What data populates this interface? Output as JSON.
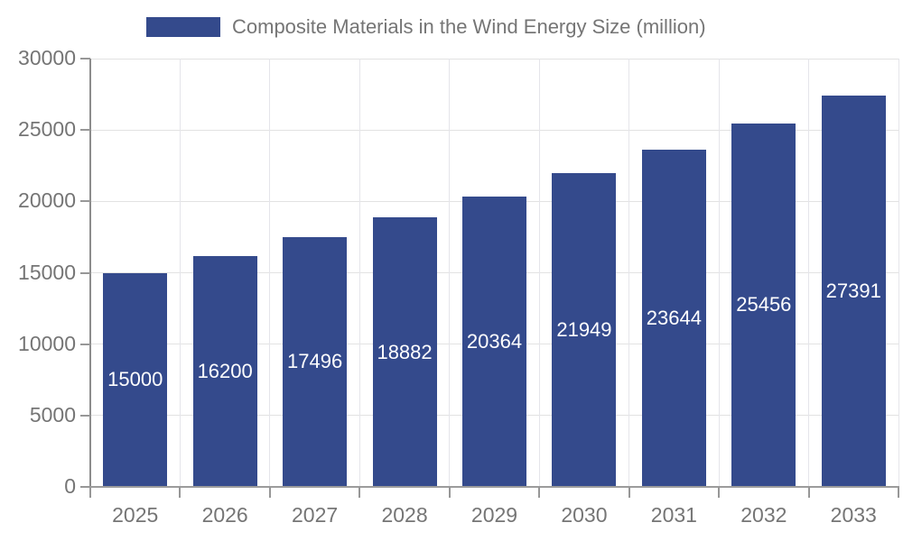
{
  "legend": {
    "label": "Composite Materials in the Wind Energy Size (million)"
  },
  "colors": {
    "bar": "#344a8c",
    "bar_value_text": "#ffffff",
    "axis_text": "#757575",
    "gridline": "#e2e2e2",
    "axis_line": "#8c8c8c"
  },
  "chart_data": {
    "type": "bar",
    "title": "Composite Materials in the Wind Energy Size (million)",
    "series_name": "Composite Materials in the Wind Energy Size (million)",
    "categories": [
      "2025",
      "2026",
      "2027",
      "2028",
      "2029",
      "2030",
      "2031",
      "2032",
      "2033"
    ],
    "values": [
      15000,
      16200,
      17496,
      18882,
      20364,
      21949,
      23644,
      25456,
      27391
    ],
    "value_labels": [
      "15000",
      "16200",
      "17496",
      "18882",
      "20364",
      "21949",
      "23644",
      "25456",
      "27391"
    ],
    "xlabel": "",
    "ylabel": "",
    "ylim": [
      0,
      30000
    ],
    "yticks": [
      0,
      5000,
      10000,
      15000,
      20000,
      25000,
      30000
    ],
    "grid": true,
    "legend_position": "top",
    "bar_color": "#344a8c",
    "value_label_position": "center-inside"
  }
}
